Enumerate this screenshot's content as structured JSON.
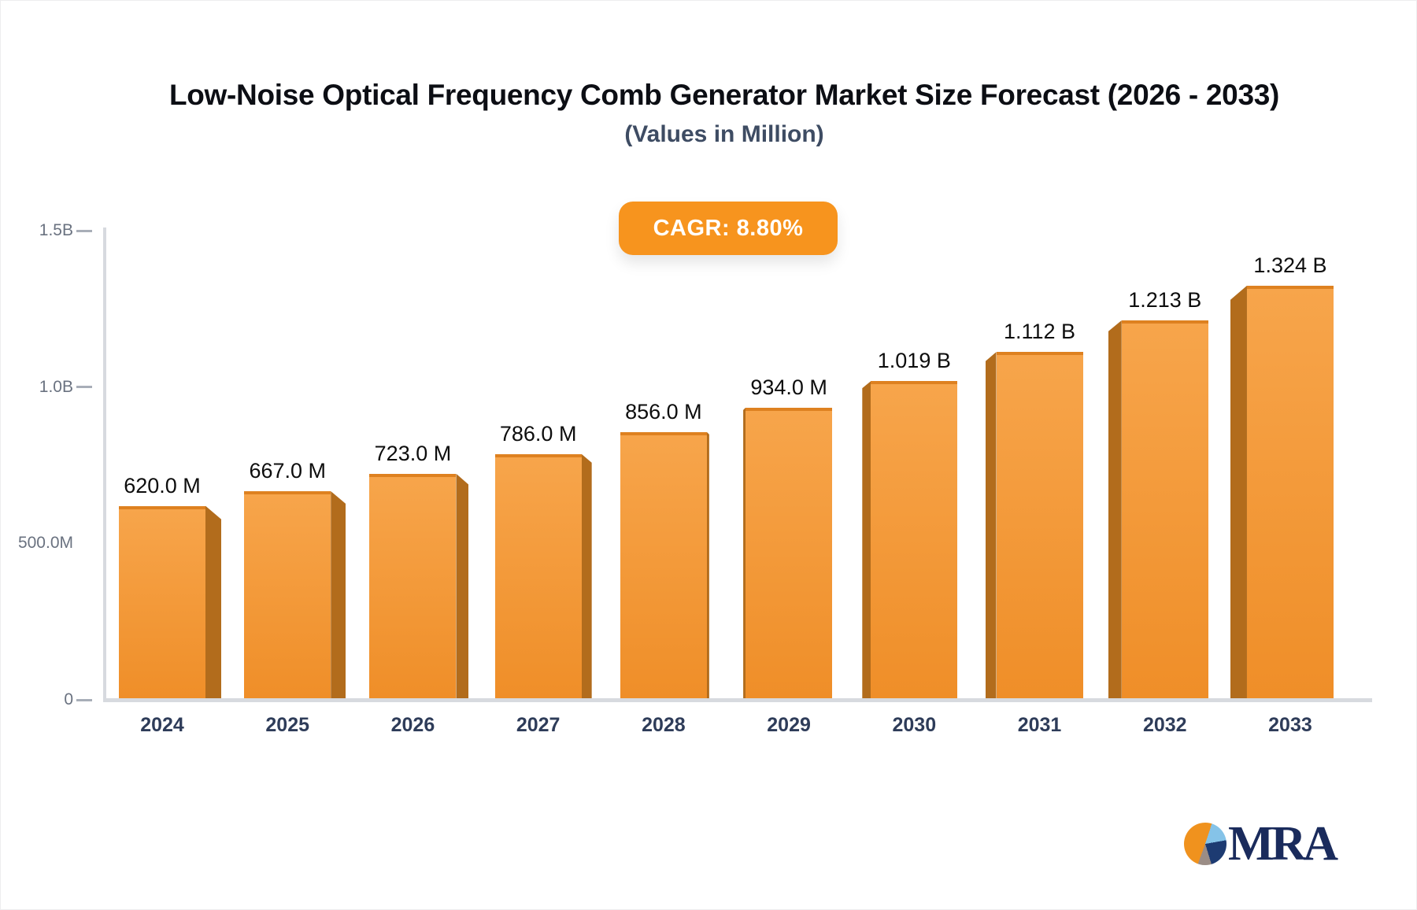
{
  "header": {
    "title": "Low-Noise Optical Frequency Comb Generator Market Size Forecast (2026 - 2033)",
    "subtitle": "(Values in Million)"
  },
  "badge": {
    "label": "CAGR: 8.80%",
    "bg_color": "#F7941E",
    "text_color": "#FFFFFF"
  },
  "chart_data": {
    "type": "bar",
    "title": "Low-Noise Optical Frequency Comb Generator Market Size Forecast (2026 - 2033)",
    "subtitle": "(Values in Million)",
    "categories": [
      "2024",
      "2025",
      "2026",
      "2027",
      "2028",
      "2029",
      "2030",
      "2031",
      "2032",
      "2033"
    ],
    "values": [
      620,
      667,
      723,
      786,
      856,
      934,
      1019,
      1112,
      1213,
      1324
    ],
    "value_labels": [
      "620.0 M",
      "667.0 M",
      "723.0 M",
      "786.0 M",
      "856.0 M",
      "934.0 M",
      "1.019 B",
      "1.112 B",
      "1.213 B",
      "1.324 B"
    ],
    "ylim": [
      0,
      1500
    ],
    "yticks": [
      {
        "label": "1.5B",
        "value": 1500,
        "dash": true
      },
      {
        "label": "1.0B",
        "value": 1000,
        "dash": true
      },
      {
        "label": "500.0M",
        "value": 500,
        "dash": false
      },
      {
        "label": "0",
        "value": 0,
        "dash": true
      }
    ],
    "grid": false,
    "legend": false,
    "xlabel": "",
    "ylabel": "",
    "colors": {
      "bar_face_top": "#F7A54B",
      "bar_face_bottom": "#EF8E28",
      "bar_top_edge": "#DE8120",
      "bar_side": "#B26C1C",
      "axis": "#D7DADF"
    }
  },
  "logo": {
    "text": "MRA",
    "text_color": "#1A2B5C",
    "pie_colors": {
      "orange": "#F0921E",
      "blue": "#85C3E8",
      "navy": "#1D3B72",
      "gray": "#9B8D86"
    }
  }
}
